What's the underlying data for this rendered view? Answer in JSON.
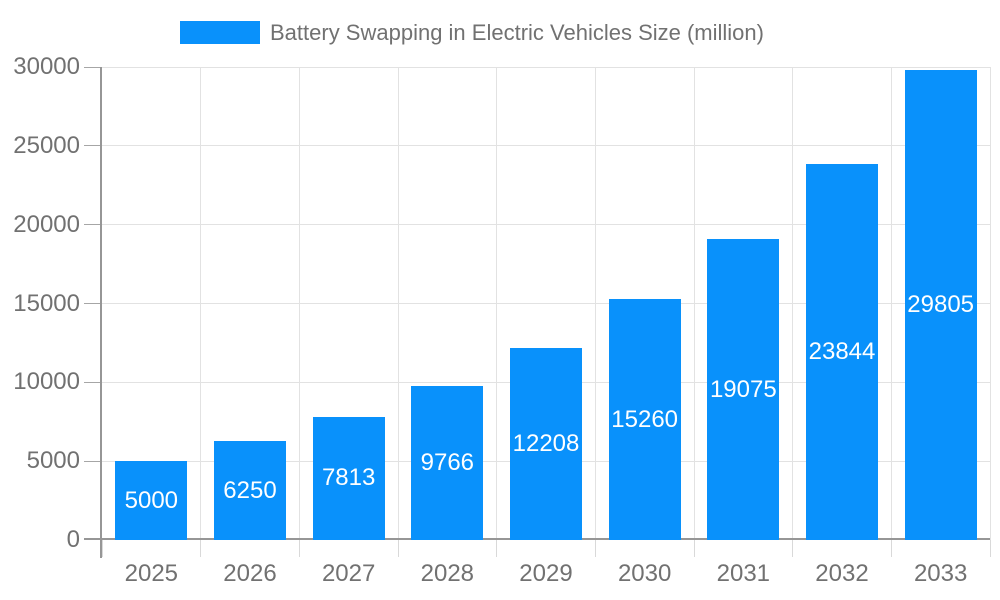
{
  "chart_data": {
    "type": "bar",
    "title": "Battery Swapping in Electric Vehicles Size (million)",
    "legend_label": "Battery Swapping in Electric Vehicles Size (million)",
    "legend_position": "top",
    "categories": [
      "2025",
      "2026",
      "2027",
      "2028",
      "2029",
      "2030",
      "2031",
      "2032",
      "2033"
    ],
    "values": [
      5000,
      6250,
      7813,
      9766,
      12208,
      15260,
      19075,
      23844,
      29805
    ],
    "xlabel": "",
    "ylabel": "",
    "ylim": [
      0,
      30000
    ],
    "yticks": [
      0,
      5000,
      10000,
      15000,
      20000,
      25000,
      30000
    ],
    "grid": true,
    "value_labels_inside_bars": true,
    "colors": {
      "bar": "#0991fb",
      "grid": "#e2e2e2",
      "axis": "#969696",
      "tick_y": "#a6a6a6",
      "tick_x": "#d9d9d9",
      "text": "#717171",
      "value_label": "#ffffff",
      "background": "#ffffff"
    }
  }
}
